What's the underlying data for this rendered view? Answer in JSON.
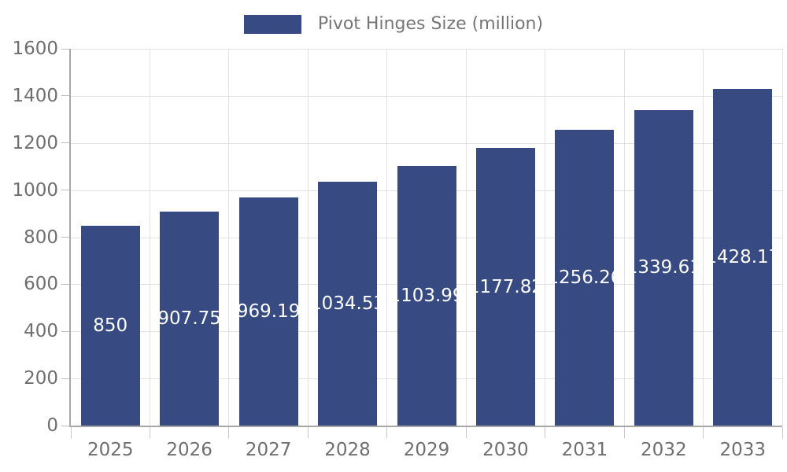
{
  "legend": {
    "label": "Pivot Hinges Size (million)"
  },
  "chart_data": {
    "type": "bar",
    "title": "",
    "series_name": "Pivot Hinges Size (million)",
    "categories": [
      "2025",
      "2026",
      "2027",
      "2028",
      "2029",
      "2030",
      "2031",
      "2032",
      "2033"
    ],
    "values": [
      850,
      907.75,
      969.19,
      1034.53,
      1103.99,
      1177.82,
      1256.26,
      1339.61,
      1428.17
    ],
    "labels": [
      "850",
      "907.75",
      "969.19",
      "1034.53",
      "1103.99",
      "1177.82",
      "1256.26",
      "1339.61",
      "1428.17"
    ],
    "xlabel": "",
    "ylabel": "",
    "ylim": [
      0,
      1600
    ],
    "y_ticks": [
      0,
      200,
      400,
      600,
      800,
      1000,
      1200,
      1400,
      1600
    ],
    "grid": true,
    "legend_position": "top-center",
    "colors": {
      "bar": "#374a82",
      "bar_label": "#ffffff",
      "axis_line": "#a8a8a8",
      "gridline": "#e2e2e2",
      "tick_label": "#6f6f6f",
      "legend_text": "#757575"
    }
  }
}
